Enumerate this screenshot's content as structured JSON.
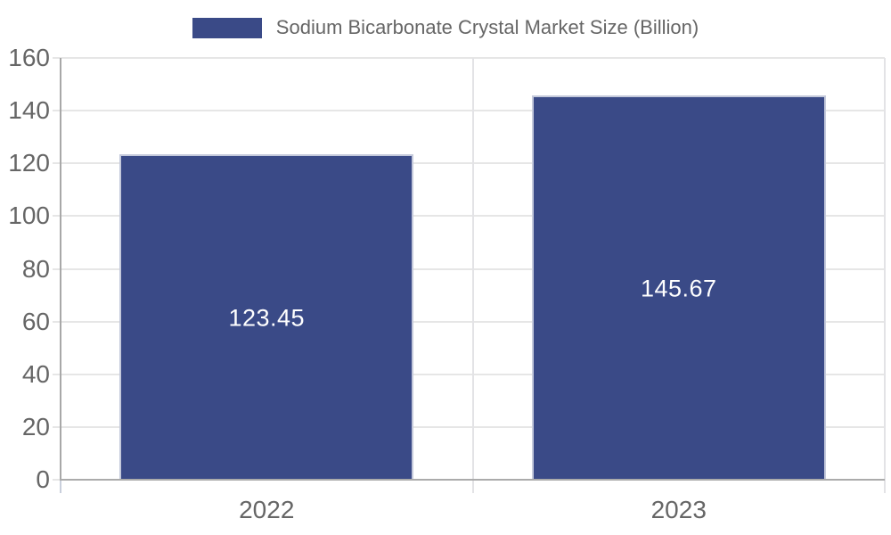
{
  "chart_data": {
    "type": "bar",
    "title": "Sodium Bicarbonate Crystal Market Size (Billion)",
    "categories": [
      "2022",
      "2023"
    ],
    "series": [
      {
        "name": "Sodium Bicarbonate Crystal Market Size (Billion)",
        "values": [
          123.45,
          145.67
        ]
      }
    ],
    "value_labels": [
      "123.45",
      "145.67"
    ],
    "xlabel": "",
    "ylabel": "",
    "ylim": [
      0,
      160
    ],
    "yticks": [
      0,
      20,
      40,
      60,
      80,
      100,
      120,
      140,
      160
    ],
    "grid": true,
    "legend_position": "top",
    "colors": {
      "bar": "#3A4A87",
      "gridline": "#E6E6E6",
      "axis_line": "#A9A9A9",
      "tick_text": "#666666",
      "legend_text": "#666666",
      "data_label": "#FFFFFF",
      "background": "#FFFFFF"
    }
  },
  "legend": {
    "items": [
      {
        "label": "Sodium Bicarbonate Crystal Market Size (Billion)",
        "color": "#3A4A87"
      }
    ]
  }
}
